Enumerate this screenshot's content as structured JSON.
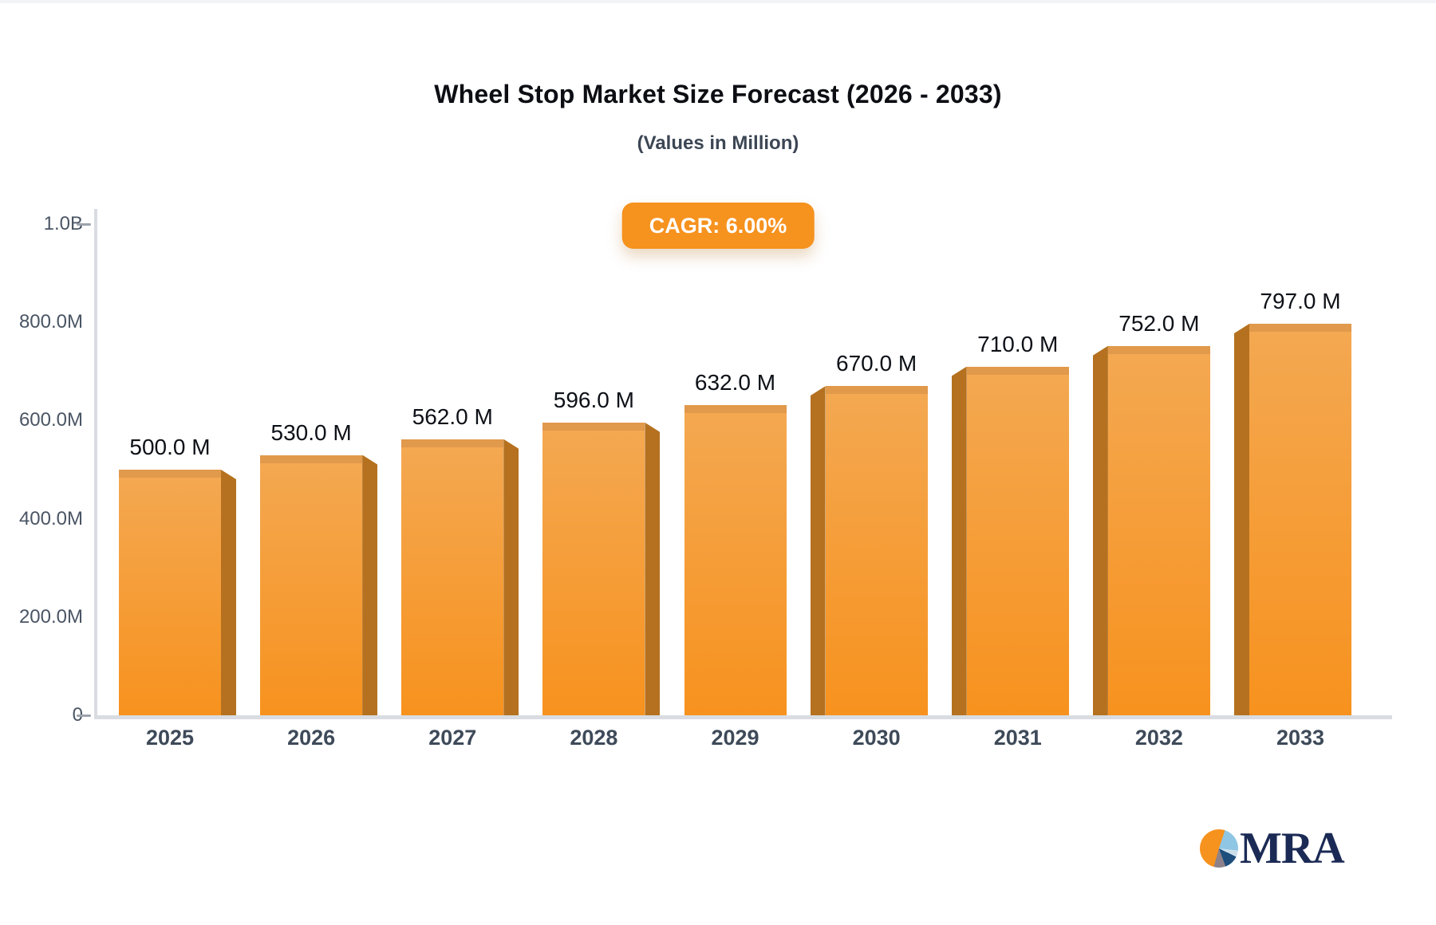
{
  "header": {
    "title": "Wheel Stop Market Size Forecast (2026 - 2033)",
    "subtitle": "(Values in Million)",
    "badge_label": "CAGR: 6.00%"
  },
  "logo": {
    "text": "MRA"
  },
  "colors": {
    "accent_orange": "#F6921E",
    "bar_front_top": "#F4A851",
    "bar_front_bottom": "#F7921E",
    "bar_top_face": "#E1994B",
    "bar_side_face": "#B5711F",
    "axis_line": "#D9DCE1",
    "tick": "#9CA3AD",
    "y_label": "#4A5564",
    "x_label": "#3E4A59",
    "value_label": "#0D1117",
    "logo_navy": "#1B2A55",
    "logo_pie": [
      "#F6921E",
      "#8FC6E4",
      "#CBDFEA",
      "#1D4E7C",
      "#8D8289"
    ]
  },
  "chart_data": {
    "type": "bar",
    "title": "Wheel Stop Market Size Forecast (2026 - 2033)",
    "subtitle": "(Values in Million)",
    "annotation": "CAGR: 6.00%",
    "categories": [
      "2025",
      "2026",
      "2027",
      "2028",
      "2029",
      "2030",
      "2031",
      "2032",
      "2033"
    ],
    "values": [
      500,
      530,
      562,
      596,
      632,
      670,
      710,
      752,
      797
    ],
    "value_labels": [
      "500.0 M",
      "530.0 M",
      "562.0 M",
      "596.0 M",
      "632.0 M",
      "670.0 M",
      "710.0 M",
      "752.0 M",
      "797.0 M"
    ],
    "unit": "Million",
    "xlabel": "",
    "ylabel": "",
    "ylim": [
      0,
      1000
    ],
    "y_ticks": [
      {
        "label": "1.0B",
        "value": 1000,
        "dash": true
      },
      {
        "label": "800.0M",
        "value": 800,
        "dash": false
      },
      {
        "label": "600.0M",
        "value": 600,
        "dash": false
      },
      {
        "label": "400.0M",
        "value": 400,
        "dash": false
      },
      {
        "label": "200.0M",
        "value": 200,
        "dash": false
      },
      {
        "label": "0",
        "value": 0,
        "dash": true
      }
    ],
    "grid": false,
    "legend": "none",
    "style": "3d-columns, perspective vanishing at center"
  }
}
